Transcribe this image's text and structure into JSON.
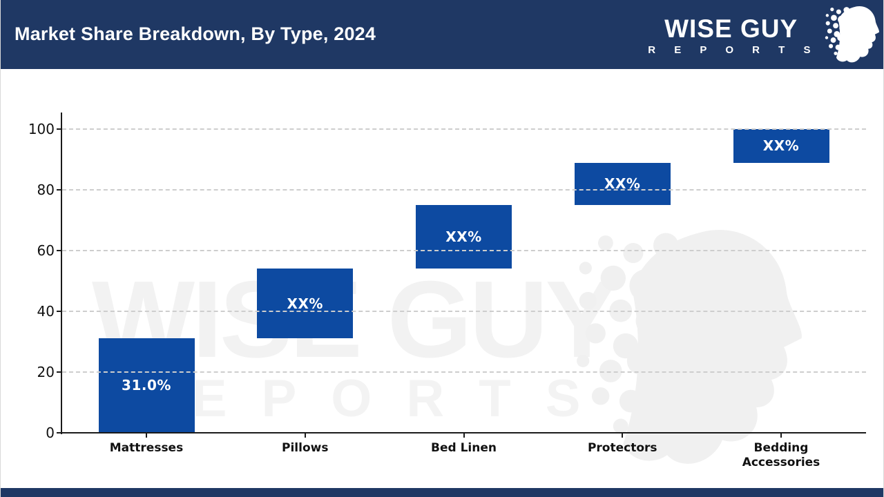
{
  "header": {
    "title": "Market Share Breakdown, By Type, 2024",
    "bg_color": "#1f3864",
    "logo": {
      "line1": "WISE GUY",
      "line2": "R E P O R T S"
    }
  },
  "watermark": {
    "line1": "WISE GUY",
    "line2": "REPORTS"
  },
  "footer": {
    "bg_color": "#1f3864"
  },
  "chart_data": {
    "type": "bar",
    "subtype": "waterfall",
    "title": "Market Share Breakdown, By Type, 2024",
    "categories": [
      "Mattresses",
      "Pillows",
      "Bed Linen",
      "Protectors",
      "Bedding Accessories"
    ],
    "bars": [
      {
        "category": "Mattresses",
        "lines": [
          "Mattresses"
        ],
        "start": 0,
        "end": 31.0,
        "value": 31.0,
        "label": "31.0%"
      },
      {
        "category": "Pillows",
        "lines": [
          "Pillows"
        ],
        "start": 31.0,
        "end": 54.0,
        "value": 23.0,
        "label": "XX%"
      },
      {
        "category": "Bed Linen",
        "lines": [
          "Bed Linen"
        ],
        "start": 54.0,
        "end": 75.0,
        "value": 21.0,
        "label": "XX%"
      },
      {
        "category": "Protectors",
        "lines": [
          "Protectors"
        ],
        "start": 75.0,
        "end": 89.0,
        "value": 14.0,
        "label": "XX%"
      },
      {
        "category": "Bedding Accessories",
        "lines": [
          "Bedding",
          "Accessories"
        ],
        "start": 89.0,
        "end": 100.0,
        "value": 11.0,
        "label": "XX%"
      }
    ],
    "xlabel": "",
    "ylabel": "",
    "ylim": [
      0,
      100
    ],
    "yticks": [
      0,
      20,
      40,
      60,
      80,
      100
    ],
    "grid": "horizontal-dashed-drawn-over-bars",
    "legend_position": "none",
    "bar_color": "#0d4aa1",
    "bar_label_color": "#ffffff",
    "axis_color": "#1a1a1a",
    "gridline_color": "#cdcdcd"
  }
}
